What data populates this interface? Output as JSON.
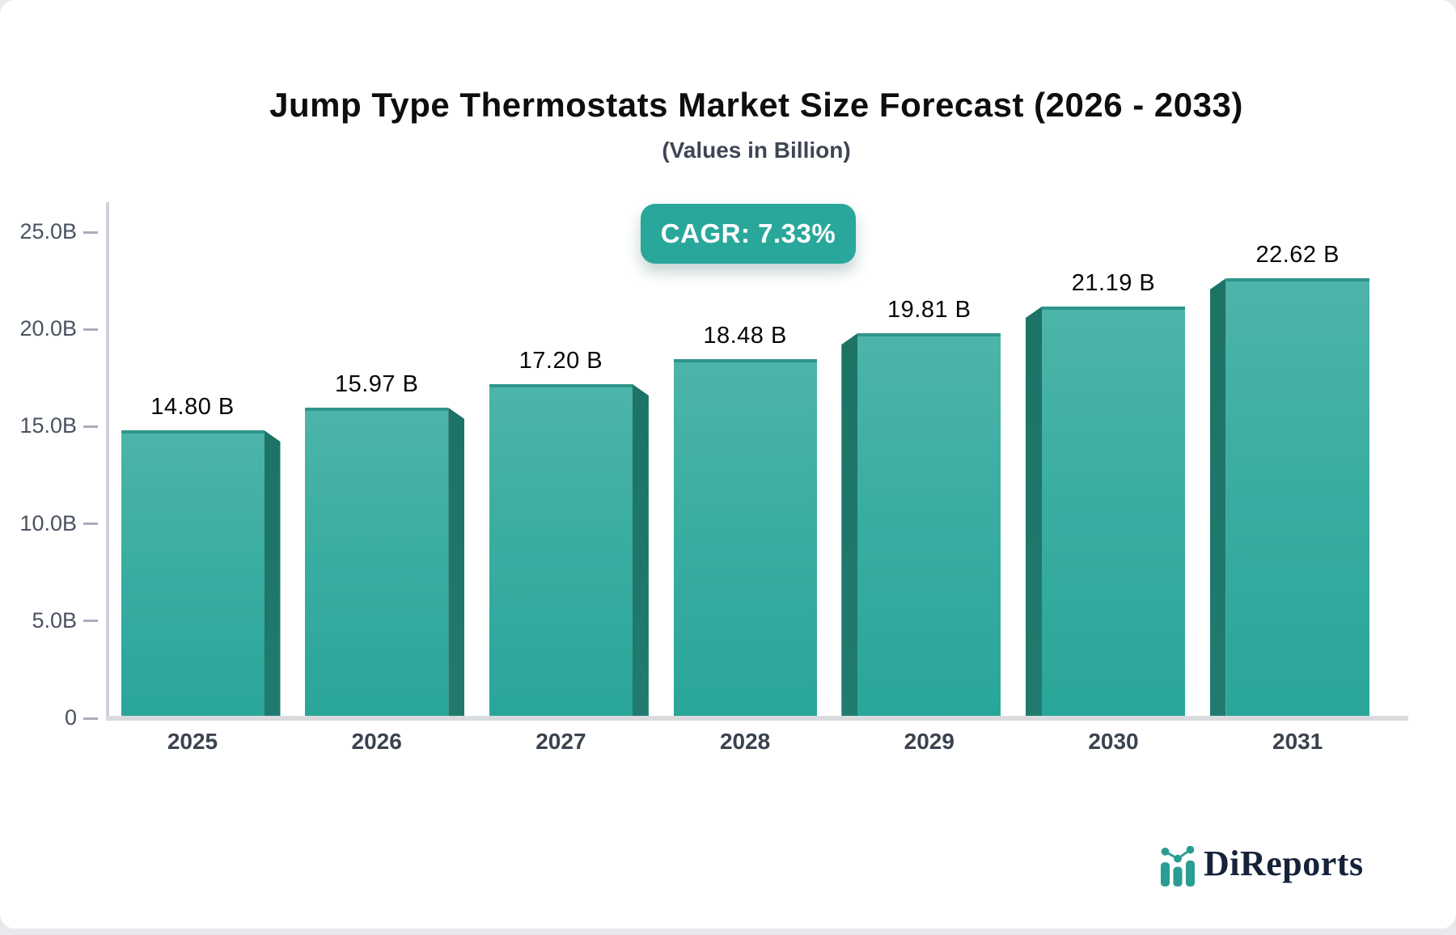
{
  "page": {
    "background_color": "#e7e9ec",
    "card_color": "#ffffff"
  },
  "header": {
    "title": "Jump Type Thermostats Market Size Forecast (2026 - 2033)",
    "subtitle": "(Values in Billion)"
  },
  "badge": {
    "label": "CAGR: 7.33%",
    "background_color": "#2aa79b",
    "text_color": "#ffffff"
  },
  "chart_data": {
    "type": "bar",
    "title": "Jump Type Thermostats Market Size Forecast (2026 - 2033)",
    "subtitle": "(Values in Billion)",
    "xlabel": "",
    "ylabel": "",
    "categories": [
      "2025",
      "2026",
      "2027",
      "2028",
      "2029",
      "2030",
      "2031"
    ],
    "values": [
      14.8,
      15.97,
      17.2,
      18.48,
      19.81,
      21.19,
      22.62
    ],
    "value_labels": [
      "14.80 B",
      "15.97 B",
      "17.20 B",
      "18.48 B",
      "19.81 B",
      "21.19 B",
      "22.62 B"
    ],
    "unit": "Billion",
    "ylim": [
      0,
      25
    ],
    "y_ticks": [
      {
        "value": 25,
        "label": "25.0B"
      },
      {
        "value": 20,
        "label": "20.0B"
      },
      {
        "value": 15,
        "label": "15.0B"
      },
      {
        "value": 10,
        "label": "10.0B"
      },
      {
        "value": 5,
        "label": "5.0B"
      },
      {
        "value": 0,
        "label": "0"
      }
    ],
    "grid": "off",
    "legend": "none",
    "bar_style": "3d-beveled-toward-center",
    "colors": {
      "bar_top": "#4db4a9",
      "bar_bottom": "#29a699",
      "bar_top_edge": "#2e968a",
      "bar_side_face": "#1f7a6d",
      "axis_line": "#cdd1d8",
      "baseline": "#d9dbde",
      "tick_dash": "#a9afb9",
      "tick_text": "#4a5260",
      "year_text": "#3b4350",
      "value_text": "#070707"
    }
  },
  "logo": {
    "text": "DiReports",
    "icon": "mini-bar-chart-with-dots-icon",
    "icon_color": "#2a9d92",
    "text_color": "#15223a"
  }
}
